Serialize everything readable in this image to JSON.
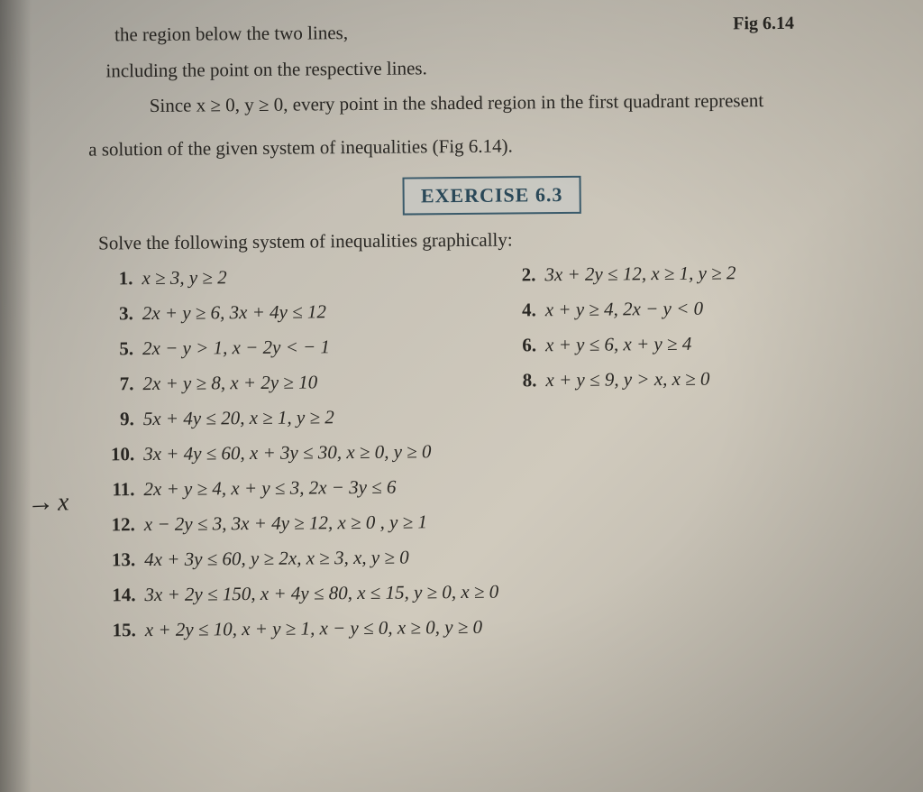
{
  "header": {
    "line1_part1": "the region below the two lines,",
    "fig_label": "Fig 6.14",
    "line2": "including the point on the respective lines.",
    "para_part1": "Since x ≥ 0, y ≥ 0, every point in the shaded region in the first quadrant represent",
    "para_part2": "a solution of the given system of inequalities (Fig 6.14)."
  },
  "exercise_title": "EXERCISE 6.3",
  "instruction": "Solve the following system of inequalities graphically:",
  "problems": [
    {
      "n": "1.",
      "t": "x ≥ 3, y ≥ 2"
    },
    {
      "n": "2.",
      "t": "3x + 2y ≤ 12,  x ≥ 1, y ≥ 2"
    },
    {
      "n": "3.",
      "t": "2x + y ≥ 6, 3x + 4y ≤ 12"
    },
    {
      "n": "4.",
      "t": "x + y ≥ 4,  2x − y < 0"
    },
    {
      "n": "5.",
      "t": "2x − y > 1, x − 2y < − 1"
    },
    {
      "n": "6.",
      "t": "x + y ≤ 6,  x + y ≥ 4"
    },
    {
      "n": "7.",
      "t": "2x + y ≥ 8,  x + 2y ≥ 10"
    },
    {
      "n": "8.",
      "t": "x + y ≤ 9,  y > x,  x ≥ 0"
    },
    {
      "n": "9.",
      "t": "5x + 4y ≤ 20,   x ≥ 1, y ≥ 2"
    },
    {
      "n": "10.",
      "t": "3x + 4y ≤ 60, x + 3y ≤ 30, x ≥ 0,  y ≥ 0"
    },
    {
      "n": "11.",
      "t": "2x + y ≥ 4,  x + y ≤ 3,  2x − 3y ≤ 6"
    },
    {
      "n": "12.",
      "t": "x − 2y ≤ 3, 3x + 4y ≥ 12,  x ≥ 0 , y ≥ 1"
    },
    {
      "n": "13.",
      "t": "4x + 3y ≤ 60, y ≥ 2x,  x ≥ 3,   x, y ≥ 0"
    },
    {
      "n": "14.",
      "t": "3x + 2y ≤ 150, x + 4y ≤ 80,  x ≤ 15,  y ≥ 0, x ≥ 0"
    },
    {
      "n": "15.",
      "t": "x + 2y ≤ 10, x + y ≥ 1, x − y ≤ 0, x ≥ 0, y ≥ 0"
    }
  ],
  "margin_note": "x"
}
